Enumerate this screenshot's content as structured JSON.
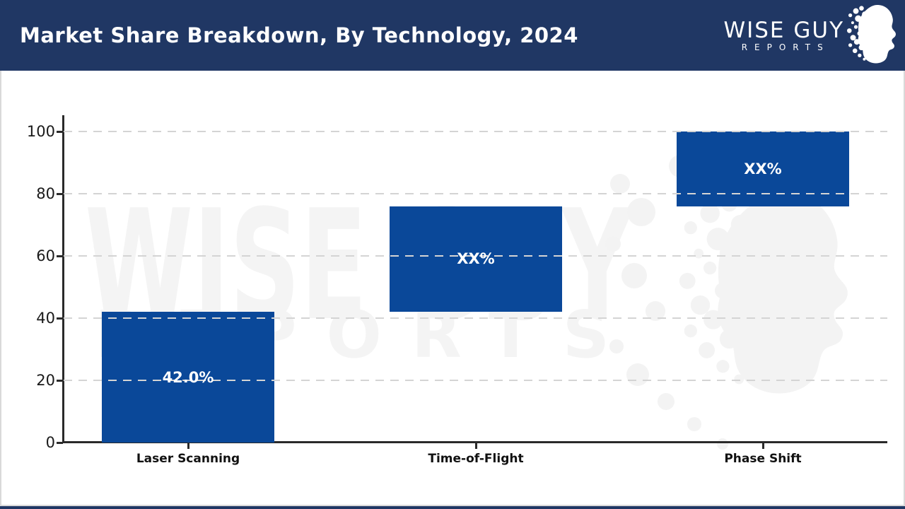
{
  "header": {
    "title": "Market Share Breakdown, By Technology, 2024",
    "logo": {
      "line1": "WISE GUY",
      "line2": "REPORTS"
    }
  },
  "watermark": {
    "line1": "WISE GUY",
    "line2": "REPORTS"
  },
  "chart_data": {
    "type": "bar",
    "subtype": "waterfall",
    "title": "Market Share Breakdown, By Technology, 2024",
    "categories": [
      "Laser Scanning",
      "Time-of-Flight",
      "Phase Shift"
    ],
    "segments": [
      {
        "category": "Laser Scanning",
        "start": 0,
        "end": 42,
        "label": "42.0%"
      },
      {
        "category": "Time-of-Flight",
        "start": 42,
        "end": 76,
        "label": "XX%"
      },
      {
        "category": "Phase Shift",
        "start": 76,
        "end": 100,
        "label": "XX%"
      }
    ],
    "ylim": [
      0,
      100
    ],
    "yticks": [
      0,
      20,
      40,
      60,
      80,
      100
    ],
    "xlabel": "",
    "ylabel": "",
    "grid": "horizontal-dashed",
    "legend": "none",
    "bar_color": "#0a4899",
    "bar_label_color": "#ffffff"
  },
  "colors": {
    "header_bg": "#203764",
    "footer_bg": "#203764",
    "accent_blue": "#0a4899",
    "watermark_gray": "#f3f3f3",
    "grid_gray": "#d4d4d4",
    "axis_black": "#2a2a2a"
  }
}
